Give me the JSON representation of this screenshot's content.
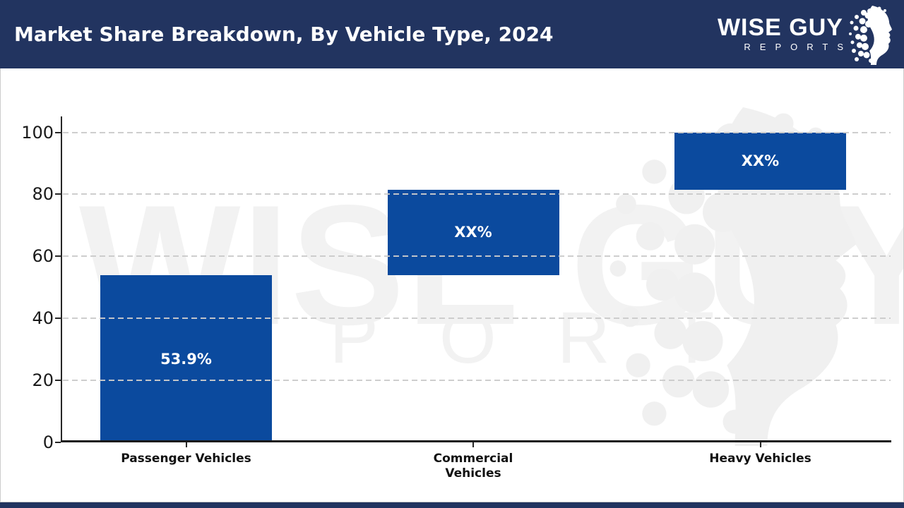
{
  "header": {
    "title": "Market Share Breakdown, By Vehicle Type, 2024",
    "brand": {
      "line1": "WISE GUY",
      "line2": "REPORTS"
    }
  },
  "watermark": {
    "line1": "WISE GUY",
    "line2": "REPORTS"
  },
  "icons": {
    "logo_head": "wiseguy-dotted-head-icon",
    "watermark_head": "wiseguy-dotted-head-icon"
  },
  "colors": {
    "header_bg": "#223460",
    "footer_bg": "#223460",
    "bar": "#0b4a9e",
    "bar_label": "#ffffff",
    "grid": "#cbcbcb",
    "axis": "#262626",
    "tick_label": "#1a1a1a",
    "watermark": "#f2f2f2",
    "title_text": "#ffffff"
  },
  "chart_data": {
    "type": "bar",
    "subtype": "waterfall",
    "title": "Market Share Breakdown, By Vehicle Type, 2024",
    "categories": [
      "Passenger Vehicles",
      "Commercial\nVehicles",
      "Heavy Vehicles"
    ],
    "segments": [
      {
        "category": "Passenger Vehicles",
        "start": 0,
        "end": 53.9,
        "label": "53.9%"
      },
      {
        "category": "Commercial Vehicles",
        "start": 53.9,
        "end": 81.5,
        "label": "XX%"
      },
      {
        "category": "Heavy Vehicles",
        "start": 81.5,
        "end": 100,
        "label": "XX%"
      }
    ],
    "yticks": [
      0,
      20,
      40,
      60,
      80,
      100
    ],
    "ylim": [
      0,
      105
    ],
    "xlabel": "",
    "ylabel": "",
    "grid": "dashed-horizontal-over-bars",
    "legend": "none",
    "bar_color": "#0b4a9e"
  }
}
